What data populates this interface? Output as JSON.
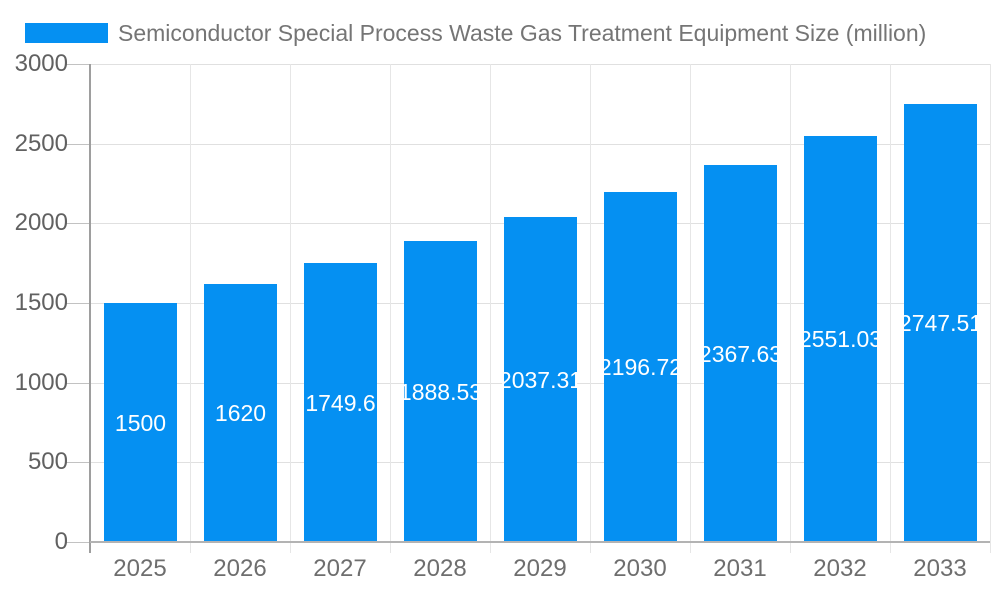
{
  "chart_data": {
    "type": "bar",
    "title": "Semiconductor Special Process Waste Gas Treatment Equipment Size (million)",
    "categories": [
      "2025",
      "2026",
      "2027",
      "2028",
      "2029",
      "2030",
      "2031",
      "2032",
      "2033"
    ],
    "values": [
      1500,
      1620,
      1749.6,
      1888.53,
      2037.31,
      2196.72,
      2367.63,
      2551.03,
      2747.51
    ],
    "bar_labels": [
      "1500",
      "1620",
      "1749.6",
      "1888.53",
      "2037.31",
      "2196.72",
      "2367.63",
      "2551.03",
      "2747.51"
    ],
    "xlabel": "",
    "ylabel": "",
    "ylim": [
      0,
      3000
    ],
    "y_ticks": [
      0,
      500,
      1000,
      1500,
      2000,
      2500,
      3000
    ],
    "grid": true,
    "legend_position": "top-left",
    "bar_color": "#0590f2",
    "bar_label_color": "#ffffff"
  },
  "colors": {
    "bar": "#0590f2",
    "legend_text": "#757575",
    "y_axis_text": "#616161",
    "x_axis_text": "#6e6e6e",
    "gridline": "#e0e0e0",
    "vertical_gridline": "#e6e6e6",
    "axis_line": "#9e9e9e",
    "baseline": "#b3b3b3",
    "background": "#ffffff"
  }
}
